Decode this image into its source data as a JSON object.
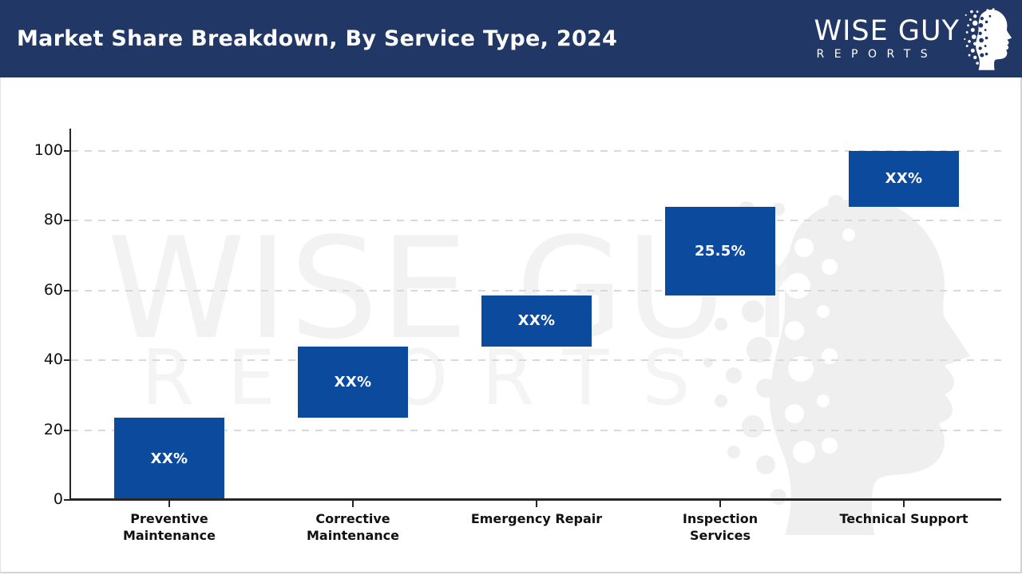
{
  "header": {
    "title": "Market Share Breakdown, By Service Type, 2024",
    "logo": {
      "line1": "WISE GUY",
      "line2": "REPORTS"
    }
  },
  "watermark": {
    "line1": "WISE GUY",
    "line2": "REPORTS"
  },
  "chart_data": {
    "type": "bar",
    "subtype": "waterfall-floating-segments",
    "title": "Market Share Breakdown, By Service Type, 2024",
    "categories": [
      "Preventive Maintenance",
      "Corrective Maintenance",
      "Emergency Repair",
      "Inspection Services",
      "Technical Support"
    ],
    "segments": [
      {
        "category": "Preventive Maintenance",
        "lines": [
          "Preventive",
          "Maintenance"
        ],
        "start": 0,
        "end": 23.5,
        "value_label": "XX%"
      },
      {
        "category": "Corrective Maintenance",
        "lines": [
          "Corrective",
          "Maintenance"
        ],
        "start": 23.5,
        "end": 44,
        "value_label": "XX%"
      },
      {
        "category": "Emergency Repair",
        "lines": [
          "Emergency Repair"
        ],
        "start": 44,
        "end": 58.5,
        "value_label": "XX%"
      },
      {
        "category": "Inspection Services",
        "lines": [
          "Inspection",
          "Services"
        ],
        "start": 58.5,
        "end": 84,
        "value_label": "25.5%"
      },
      {
        "category": "Technical Support",
        "lines": [
          "Technical Support"
        ],
        "start": 84,
        "end": 100,
        "value_label": "XX%"
      }
    ],
    "yticks": [
      0,
      20,
      40,
      60,
      80,
      100
    ],
    "ylim": [
      0,
      100
    ],
    "xlabel": "",
    "ylabel": "",
    "grid": "horizontal-dashed",
    "legend": "none"
  },
  "colors": {
    "header_bg": "#213765",
    "bar_fill": "#0C4A9E",
    "bar_label": "#FFFFFF",
    "grid_line": "#D9D9D9",
    "axis_line": "#262626",
    "tick_label": "#111111",
    "watermark": "#F1F1F1",
    "panel_border": "#D4D4D4",
    "background": "#FFFFFF"
  }
}
